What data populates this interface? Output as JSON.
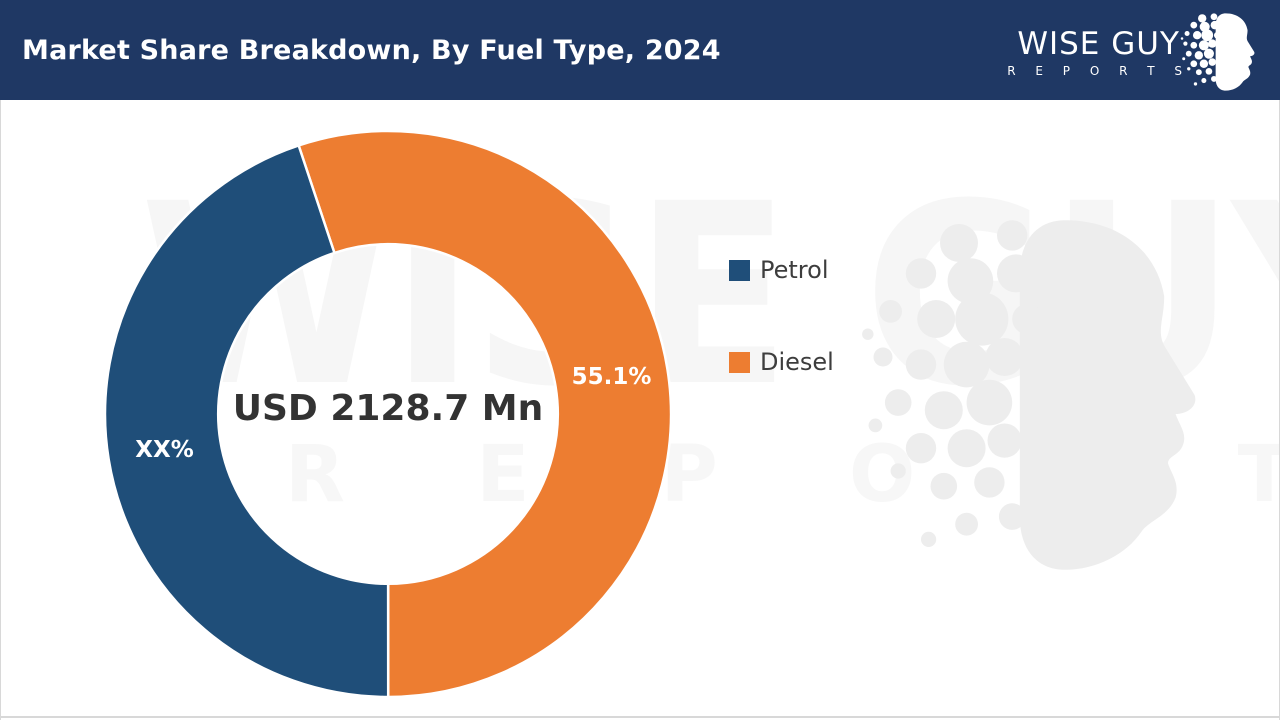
{
  "header": {
    "title": "Market Share Breakdown, By Fuel Type, 2024",
    "bg_color": "#1f3864",
    "brand": {
      "name_top": "WISE GUY",
      "name_bottom": "R E P O R T S"
    }
  },
  "chart_data": {
    "type": "pie",
    "subtype": "donut",
    "title": "Market Share Breakdown, By Fuel Type, 2024",
    "categories": [
      "Petrol",
      "Diesel"
    ],
    "values": [
      44.9,
      55.1
    ],
    "labels": [
      "XX%",
      "55.1%"
    ],
    "colors": [
      "#1f4e79",
      "#ed7d31"
    ],
    "center_label": "USD 2128.7 Mn",
    "units": "USD Mn",
    "start_angle_deg": -18.4,
    "draw_order": [
      1,
      0
    ],
    "inner_radius_ratio": 0.6,
    "legend_position": "right"
  },
  "watermark": {
    "line1": "WISE GUY",
    "line2": "R E P O R T S"
  }
}
